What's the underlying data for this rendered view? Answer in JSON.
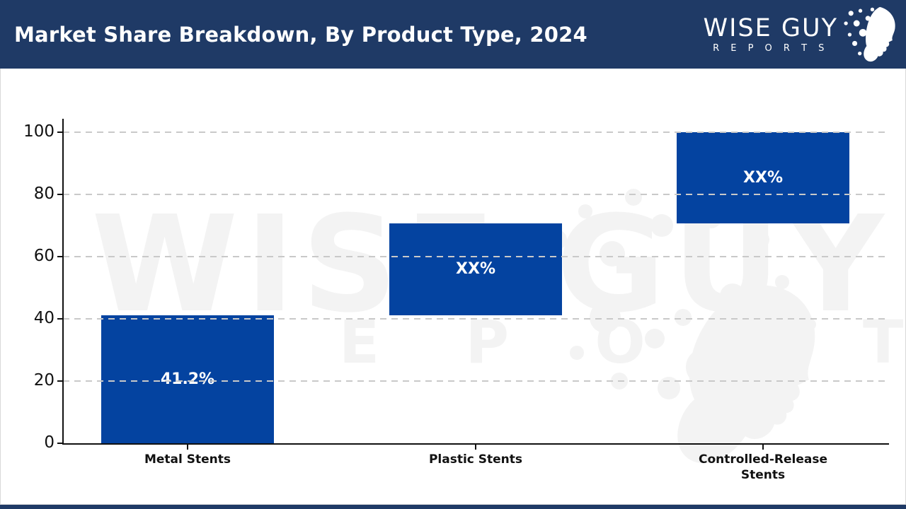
{
  "header": {
    "title": "Market Share Breakdown, By Product Type, 2024",
    "logo": {
      "line1": "WISE GUY",
      "line2": "R E P O R T S"
    }
  },
  "watermark": {
    "line1": "WISE GUY",
    "line2": "R E P O R T S"
  },
  "chart_data": {
    "type": "bar",
    "subtype": "waterfall",
    "title": "Market Share Breakdown, By Product Type, 2024",
    "categories": [
      "Metal Stents",
      "Plastic Stents",
      "Controlled-Release Stents"
    ],
    "segments": [
      {
        "category": "Metal Stents",
        "start": 0,
        "end": 41.2,
        "value_label": "41.2%"
      },
      {
        "category": "Plastic Stents",
        "start": 41.2,
        "end": 70.7,
        "value_label": "XX%"
      },
      {
        "category": "Controlled-Release Stents",
        "start": 70.7,
        "end": 100,
        "value_label": "XX%"
      }
    ],
    "y_ticks": [
      0,
      20,
      40,
      60,
      80,
      100
    ],
    "ylim": [
      0,
      104
    ],
    "xlabel": "",
    "ylabel": "",
    "grid": "horizontal-dashed",
    "legend": "none",
    "colors": {
      "bar": "#0443a0",
      "header_bg": "#1f3a66",
      "grid": "#c9c9c9",
      "axis": "#111111",
      "value_label": "#ffffff",
      "watermark": "#f3f3f3"
    }
  }
}
